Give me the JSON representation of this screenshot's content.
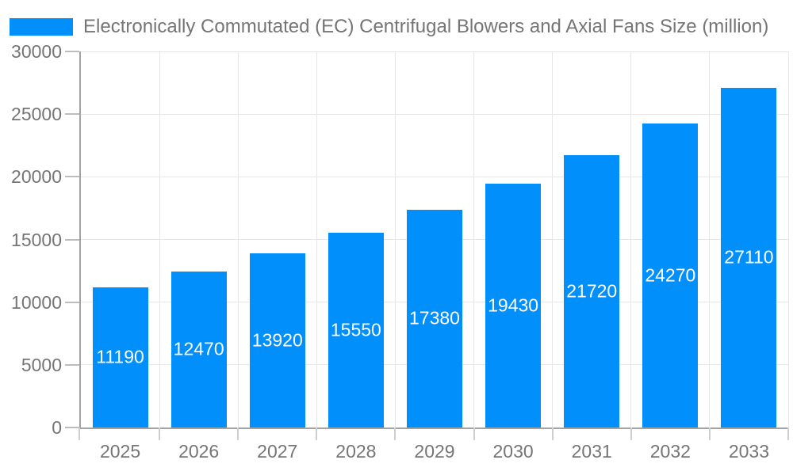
{
  "colors": {
    "bar": "#008FFB",
    "text": "#757575",
    "value_label": "#ffffff",
    "grid": "#e7e7e7",
    "axis": "#a3a3a3",
    "background": "#ffffff"
  },
  "chart_data": {
    "type": "bar",
    "title": "Electronically Commutated (EC) Centrifugal Blowers and Axial Fans Size (million)",
    "categories": [
      "2025",
      "2026",
      "2027",
      "2028",
      "2029",
      "2030",
      "2031",
      "2032",
      "2033"
    ],
    "values": [
      11190,
      12470,
      13920,
      15550,
      17380,
      19430,
      21720,
      24270,
      27110
    ],
    "xlabel": "",
    "ylabel": "",
    "ylim": [
      0,
      30000
    ],
    "yticks": [
      0,
      5000,
      10000,
      15000,
      20000,
      25000,
      30000
    ],
    "grid": true,
    "legend_position": "top-left",
    "value_label_position": "inside-center"
  }
}
